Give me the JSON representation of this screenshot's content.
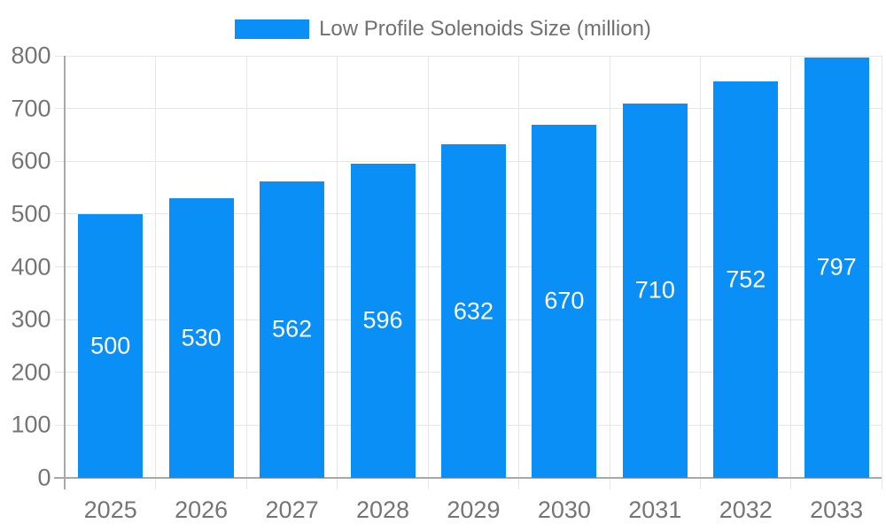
{
  "legend": {
    "label": "Low Profile Solenoids Size (million)"
  },
  "chart_data": {
    "type": "bar",
    "title": "Low Profile Solenoids Size (million)",
    "series_name": "Low Profile Solenoids Size (million)",
    "categories": [
      "2025",
      "2026",
      "2027",
      "2028",
      "2029",
      "2030",
      "2031",
      "2032",
      "2033"
    ],
    "values": [
      500,
      530,
      562,
      596,
      632,
      670,
      710,
      752,
      797
    ],
    "xlabel": "",
    "ylabel": "",
    "ylim": [
      0,
      800
    ],
    "yticks": [
      0,
      100,
      200,
      300,
      400,
      500,
      600,
      700,
      800
    ],
    "grid": true,
    "legend_position": "top-center",
    "value_labels_position": "inside-middle"
  },
  "style": {
    "bar_color": "#0a8ff7",
    "grid_color": "#e6e6e6",
    "axis_color": "#a8a8a8",
    "tick_text_color": "#757575",
    "legend_text_color": "#707070",
    "value_label_color": "#ffffff",
    "background_color": "#ffffff"
  }
}
